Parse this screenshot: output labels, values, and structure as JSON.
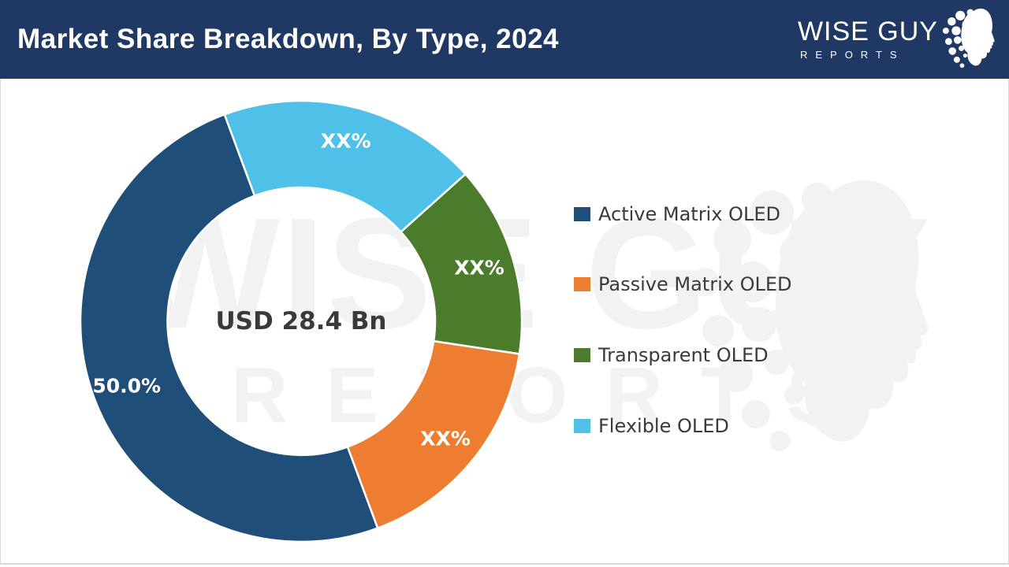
{
  "header": {
    "title": "Market Share Breakdown, By Type, 2024",
    "logo": {
      "line1": "WISE GUY",
      "line2": "REPORTS"
    }
  },
  "watermark": {
    "line1": "WISE GUY",
    "line2": "REPORTS"
  },
  "chart_data": {
    "type": "pie",
    "subtype": "donut",
    "title": "Market Share Breakdown, By Type, 2024",
    "center_label": "USD 28.4 Bn",
    "start_angle_deg": 110.3,
    "direction": "counterclockwise",
    "legend_position": "right",
    "slices": [
      {
        "label": "Active Matrix OLED",
        "value_pct": 50.0,
        "pct_label": "50.0%",
        "color": "#1f4e79"
      },
      {
        "label": "Passive Matrix OLED",
        "value_pct": 17.0,
        "pct_label": "XX%",
        "color": "#ed7d31"
      },
      {
        "label": "Transparent OLED",
        "value_pct": 14.0,
        "pct_label": "XX%",
        "color": "#4a7c2c"
      },
      {
        "label": "Flexible OLED",
        "value_pct": 19.0,
        "pct_label": "XX%",
        "color": "#4fc1e8"
      }
    ]
  },
  "colors": {
    "header_background": "#203864",
    "title_text": "#ffffff",
    "body_text": "#3a3a3a",
    "watermark": "#f2f2f2",
    "border_line": "#d9d9d9"
  }
}
